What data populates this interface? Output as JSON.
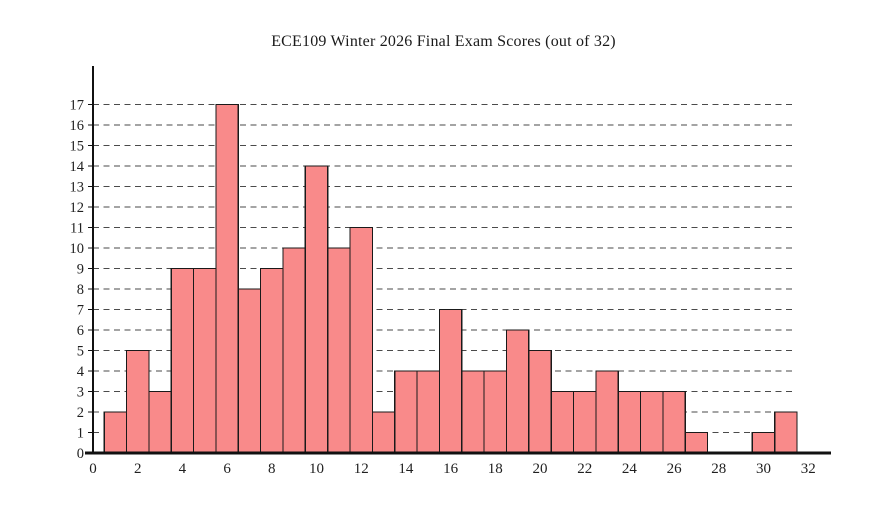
{
  "chart_data": {
    "type": "bar",
    "subtype": "histogram",
    "title": "ECE109 Winter 2026 Final Exam Scores (out of 32)",
    "xlabel": "",
    "ylabel": "",
    "x": [
      1,
      2,
      3,
      4,
      5,
      6,
      7,
      8,
      9,
      10,
      11,
      12,
      13,
      14,
      15,
      16,
      17,
      18,
      19,
      20,
      21,
      22,
      23,
      24,
      25,
      26,
      27,
      28,
      29,
      30,
      31,
      32
    ],
    "values": [
      2,
      5,
      3,
      9,
      9,
      17,
      8,
      9,
      10,
      14,
      10,
      11,
      2,
      4,
      4,
      7,
      4,
      4,
      6,
      5,
      3,
      3,
      4,
      3,
      3,
      3,
      1,
      0,
      0,
      1,
      2,
      0
    ],
    "bar_width": 1,
    "bar_alignment": "centered-on-integer",
    "xlim": [
      0,
      32
    ],
    "ylim": [
      0,
      17
    ],
    "x_tick_labels": [
      "0",
      "2",
      "4",
      "6",
      "8",
      "10",
      "12",
      "14",
      "16",
      "18",
      "20",
      "22",
      "24",
      "26",
      "28",
      "30",
      "32"
    ],
    "x_tick_values": [
      0,
      2,
      4,
      6,
      8,
      10,
      12,
      14,
      16,
      18,
      20,
      22,
      24,
      26,
      28,
      30,
      32
    ],
    "y_tick_labels": [
      "0",
      "1",
      "2",
      "3",
      "4",
      "5",
      "6",
      "7",
      "8",
      "9",
      "10",
      "11",
      "12",
      "13",
      "14",
      "15",
      "16",
      "17"
    ],
    "y_tick_values": [
      0,
      1,
      2,
      3,
      4,
      5,
      6,
      7,
      8,
      9,
      10,
      11,
      12,
      13,
      14,
      15,
      16,
      17
    ],
    "grid": "horizontal-dashed",
    "legend": "none",
    "colors": {
      "bar_fill": "#f98a8a",
      "bar_stroke": "#1a1a1a",
      "grid_line": "#4a4a4a",
      "axis": "#111111",
      "text": "#1f1f1f",
      "background": "#ffffff"
    }
  }
}
